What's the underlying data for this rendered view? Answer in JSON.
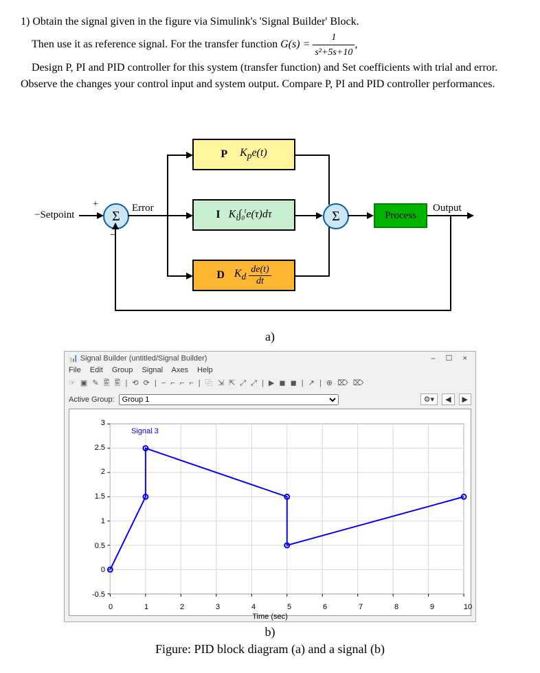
{
  "question": {
    "number": "1)",
    "line1a": "Obtain the signal given in the figure via Simulink's 'Signal Builder' Block.",
    "line2a": "Then use it as  reference signal. For the transfer function ",
    "tf_lhs": "G(s) = ",
    "tf_num": "1",
    "tf_den": "s²+5s+10",
    "tf_after": ",",
    "line3": "Design P, PI and PID controller for this system (transfer function) and Set coefficients with trial and error. Observe the changes your control input and system output. Compare P, PI and PID controller performances."
  },
  "diagram": {
    "setpoint_label": "−Setpoint",
    "error_label": "Error",
    "process_label": "Process",
    "output_label": "Output",
    "sum_symbol": "Σ",
    "plus": "+",
    "minus": "−",
    "P": {
      "letter": "P",
      "expr": "K_p e(t)",
      "bg": "#fff59d",
      "border": "#000000"
    },
    "I": {
      "letter": "I",
      "expr": "K_i ∫₀ᵗ e(τ)dτ",
      "bg": "#c8f0d0",
      "border": "#000000"
    },
    "D": {
      "letter": "D",
      "expr": "K_d de(t)/dt",
      "bg": "#ffb733",
      "border": "#000000"
    },
    "sublabel": "a)"
  },
  "signal_builder": {
    "title": "Signal Builder (untitled/Signal Builder)",
    "minimize": "–",
    "maximize": "☐",
    "close": "×",
    "menu": [
      "File",
      "Edit",
      "Group",
      "Signal",
      "Axes",
      "Help"
    ],
    "toolbar_glyphs": "☞ ▣ ✎ 🖺 🖺 | ⟲ ⟳ | − ⌐ ⌐ ⌐ | ⿻ ⇲ ⇱ ⤢ ⤢ | ▶ ◼ ◼ | ↗ | ⊕ ⌦ ⌦",
    "active_label": "Active Group:",
    "active_value": "Group 1",
    "right_ctrl": [
      "⚙▾",
      "◀",
      "▶"
    ],
    "signal_name": "Signal 3",
    "xaxis_label": "Time (sec)",
    "y_ticks": [
      -0.5,
      0,
      0.5,
      1,
      1.5,
      2,
      2.5,
      3
    ],
    "x_ticks": [
      0,
      1,
      2,
      3,
      4,
      5,
      6,
      7,
      8,
      9,
      10
    ],
    "ylim": [
      -0.5,
      3
    ],
    "xlim": [
      0,
      10
    ],
    "grid_color": "#d8d8d8",
    "line_color": "#0000ff",
    "background_color": "#ffffff",
    "signal_points": [
      [
        0,
        0
      ],
      [
        1,
        1.5
      ],
      [
        1,
        2.5
      ],
      [
        5,
        1.5
      ],
      [
        5,
        0.5
      ],
      [
        10,
        1.5
      ]
    ],
    "sublabel": "b)"
  },
  "caption": "Figure: PID block diagram (a) and a signal (b)"
}
